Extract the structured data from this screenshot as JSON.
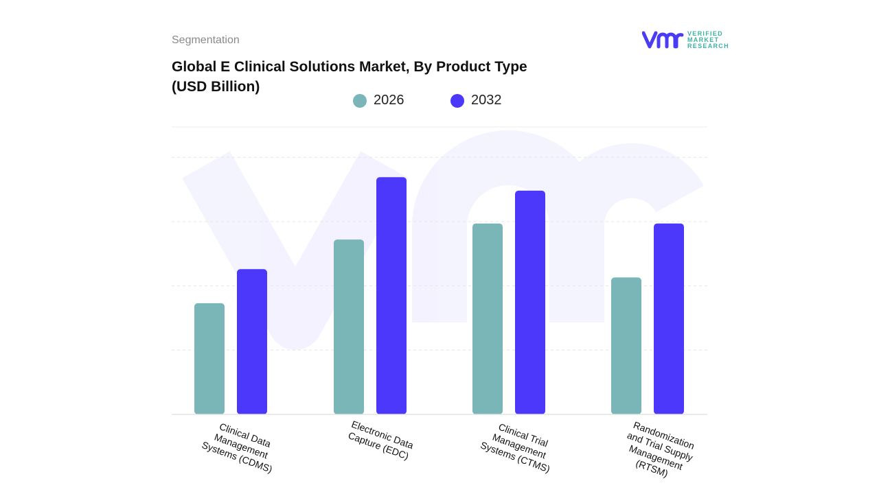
{
  "header": {
    "segment_label": "Segmentation",
    "title": "Global E Clinical Solutions Market, By Product Type (USD Billion)"
  },
  "logo": {
    "text_line1": "VERIFIED",
    "text_line2": "MARKET",
    "text_line3": "RESEARCH",
    "brand_color": "#4a3cf5",
    "text_color": "#3bb3a0"
  },
  "chart_data": {
    "type": "bar",
    "title": "Global E Clinical Solutions Market, By Product Type (USD Billion)",
    "categories": [
      "Clinical Data Management Systems (CDMS)",
      "Electronic Data Capture (EDC)",
      "Clinical Trial Management Systems (CTMS)",
      "Randomization and Trial Supply Management (RTSM)"
    ],
    "series": [
      {
        "name": "2026",
        "color": "#7ab5b8",
        "values": [
          1.73,
          2.72,
          2.97,
          2.13
        ]
      },
      {
        "name": "2032",
        "color": "#4b38fb",
        "values": [
          2.26,
          3.69,
          3.48,
          2.97
        ]
      }
    ],
    "ylim": [
      0,
      4
    ],
    "y_ticks_printed": false,
    "grid": true,
    "legend": "top-center",
    "xlabel": "",
    "ylabel": ""
  }
}
